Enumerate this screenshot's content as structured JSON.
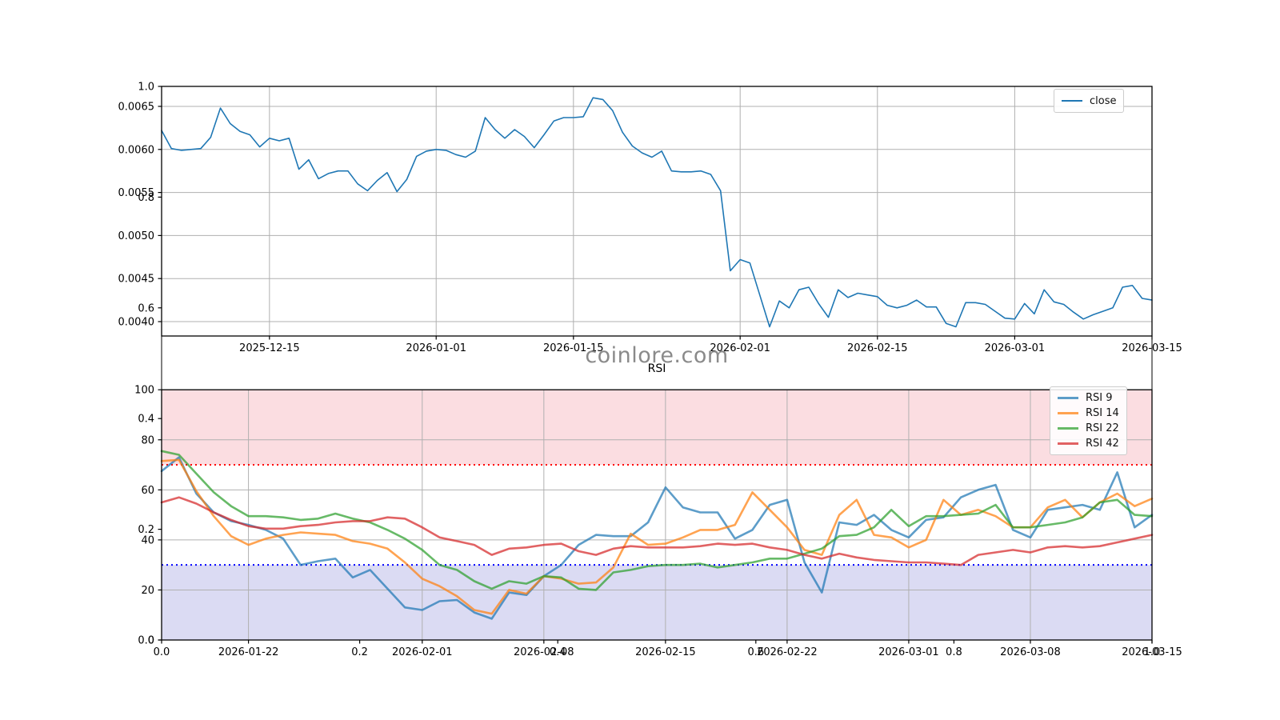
{
  "watermark": "coinlore.com",
  "figure": {
    "background": "#ffffff",
    "grid_color": "#b0b0b0",
    "spine_color": "#000000",
    "tick_label_color": "#000000"
  },
  "overlay_axis": {
    "x_tick_labels": [
      "0.0",
      "0.2",
      "0.4",
      "0.6",
      "0.8",
      "1.0"
    ],
    "y_tick_labels": [
      "1.0",
      "0.8",
      "0.6",
      "0.4",
      "0.2",
      "0.0"
    ]
  },
  "chart_data": [
    {
      "type": "line",
      "title": "",
      "xlabel": "",
      "ylabel": "",
      "grid": true,
      "legend_position": "upper right",
      "x_start": "2025-12-04",
      "x_end": "2026-03-15",
      "freq": "daily",
      "x_tick_labels": [
        "2025-12-15",
        "2026-01-01",
        "2026-01-15",
        "2026-02-01",
        "2026-02-15",
        "2026-03-01",
        "2026-03-15"
      ],
      "x_tick_offsets": [
        11,
        28,
        42,
        59,
        73,
        87,
        101
      ],
      "y_tick_labels": [
        "0.0040",
        "0.0045",
        "0.0050",
        "0.0055",
        "0.0060",
        "0.0065"
      ],
      "y_tick_values": [
        0.004,
        0.0045,
        0.005,
        0.0055,
        0.006,
        0.0065
      ],
      "ylim": [
        0.003833,
        0.006732
      ],
      "series": [
        {
          "name": "close",
          "color": "#1f77b4",
          "width": 1.6,
          "opacity": 1,
          "values": [
            0.00622,
            0.00601,
            0.00599,
            0.006,
            0.00601,
            0.00614,
            0.00648,
            0.0063,
            0.00621,
            0.00617,
            0.00603,
            0.00613,
            0.0061,
            0.00613,
            0.00577,
            0.00588,
            0.00566,
            0.00572,
            0.00575,
            0.00575,
            0.0056,
            0.00552,
            0.00564,
            0.00573,
            0.00551,
            0.00565,
            0.00592,
            0.00598,
            0.006,
            0.00599,
            0.00594,
            0.00591,
            0.00598,
            0.00637,
            0.00623,
            0.00613,
            0.00623,
            0.00615,
            0.00602,
            0.00617,
            0.00633,
            0.00637,
            0.00637,
            0.00638,
            0.0066,
            0.00658,
            0.00645,
            0.0062,
            0.00604,
            0.00596,
            0.00591,
            0.00598,
            0.00575,
            0.00574,
            0.00574,
            0.00575,
            0.00571,
            0.00552,
            0.00459,
            0.00472,
            0.00468,
            0.00431,
            0.00394,
            0.00424,
            0.00416,
            0.00437,
            0.0044,
            0.00421,
            0.00405,
            0.00437,
            0.00428,
            0.00433,
            0.00431,
            0.00429,
            0.00419,
            0.00416,
            0.00419,
            0.00425,
            0.00417,
            0.00417,
            0.00398,
            0.00394,
            0.00422,
            0.00422,
            0.0042,
            0.00412,
            0.00404,
            0.00403,
            0.00421,
            0.00409,
            0.00437,
            0.00423,
            0.0042,
            0.00411,
            0.00403,
            0.00408,
            0.00412,
            0.00416,
            0.0044,
            0.00442,
            0.00427,
            0.00425
          ]
        }
      ]
    },
    {
      "type": "line",
      "title": "RSI",
      "xlabel": "",
      "ylabel": "",
      "grid": true,
      "legend_position": "upper right",
      "x_start": "2026-01-17",
      "x_end": "2026-03-15",
      "freq": "daily",
      "x_tick_labels": [
        "2026-01-22",
        "2026-02-01",
        "2026-02-08",
        "2026-02-15",
        "2026-02-22",
        "2026-03-01",
        "2026-03-08",
        "2026-03-15"
      ],
      "x_tick_offsets": [
        5,
        15,
        22,
        29,
        36,
        43,
        50,
        57
      ],
      "y_tick_labels": [
        "0",
        "20",
        "40",
        "60",
        "80",
        "100"
      ],
      "y_tick_values": [
        0,
        20,
        40,
        60,
        80,
        100
      ],
      "ylim": [
        0,
        100
      ],
      "bands": [
        {
          "from": 70,
          "to": 100,
          "color": "#fbdde1",
          "meaning": "overbought"
        },
        {
          "from": 0,
          "to": 30,
          "color": "#dbdbf3",
          "meaning": "oversold"
        }
      ],
      "hlines": [
        {
          "value": 70,
          "color": "#ff0000",
          "style": "dotted"
        },
        {
          "value": 30,
          "color": "#0000ff",
          "style": "dotted"
        }
      ],
      "series": [
        {
          "name": "RSI 9",
          "color": "#1f77b4",
          "width": 2.6,
          "opacity": 0.72,
          "values": [
            67.5,
            73,
            58.5,
            51,
            47.5,
            46,
            44,
            40.5,
            30,
            31.5,
            32.5,
            25,
            28,
            20.5,
            13,
            12,
            15.5,
            16,
            11,
            8.5,
            19,
            18,
            25.5,
            30,
            38,
            42,
            41.5,
            41.5,
            47,
            61,
            53,
            51,
            51,
            40.5,
            44,
            54,
            56,
            31,
            19,
            47,
            46,
            50,
            44,
            41,
            48,
            49,
            57,
            60,
            62,
            44,
            41,
            52,
            53,
            54,
            52,
            67,
            45,
            50
          ]
        },
        {
          "name": "RSI 14",
          "color": "#ff7f0e",
          "width": 2.6,
          "opacity": 0.72,
          "values": [
            71.5,
            72,
            59.5,
            49.5,
            41.5,
            38,
            40.5,
            42,
            43,
            42.5,
            42,
            39.5,
            38.5,
            36.5,
            31,
            24.5,
            21.5,
            17.5,
            12,
            10.5,
            20,
            18.5,
            25.5,
            24.5,
            22.5,
            23,
            29,
            42.5,
            38,
            38.5,
            41,
            44,
            44,
            46,
            59,
            52,
            45,
            36,
            34,
            50,
            56,
            42,
            41,
            37,
            40,
            56,
            50,
            52,
            49.5,
            45,
            45,
            53,
            56,
            49,
            55,
            58.5,
            53.5,
            56.5
          ]
        },
        {
          "name": "RSI 22",
          "color": "#2ca02c",
          "width": 2.6,
          "opacity": 0.72,
          "values": [
            75.5,
            74,
            66.5,
            59,
            53.5,
            49.5,
            49.5,
            49,
            48,
            48.5,
            50.5,
            48.5,
            47,
            44,
            40.5,
            36,
            30,
            28,
            23.5,
            20.5,
            23.5,
            22.5,
            25.5,
            25,
            20.5,
            20,
            27,
            28,
            29.5,
            30,
            30,
            30.5,
            29,
            30,
            31,
            32.5,
            32.5,
            34.5,
            36.5,
            41.5,
            42,
            45,
            52,
            45.5,
            49.5,
            49.5,
            50,
            50.5,
            54,
            45,
            45,
            46,
            47,
            49,
            55,
            56,
            50,
            49.5
          ]
        },
        {
          "name": "RSI 42",
          "color": "#d62728",
          "width": 2.6,
          "opacity": 0.72,
          "values": [
            55,
            57,
            54.5,
            51,
            48,
            45.5,
            44.5,
            44.5,
            45.5,
            46,
            47,
            47.5,
            47.5,
            49,
            48.5,
            45,
            41,
            39.5,
            38,
            34,
            36.5,
            37,
            38,
            38.5,
            35.5,
            34,
            36.5,
            37.5,
            37,
            37,
            37,
            37.5,
            38.5,
            38,
            38.5,
            37,
            36,
            34,
            32.5,
            34.5,
            33,
            32,
            31.5,
            31,
            31,
            30.5,
            30,
            34,
            35,
            36,
            35,
            37,
            37.5,
            37,
            37.5,
            39,
            40.5,
            42
          ]
        }
      ]
    }
  ]
}
